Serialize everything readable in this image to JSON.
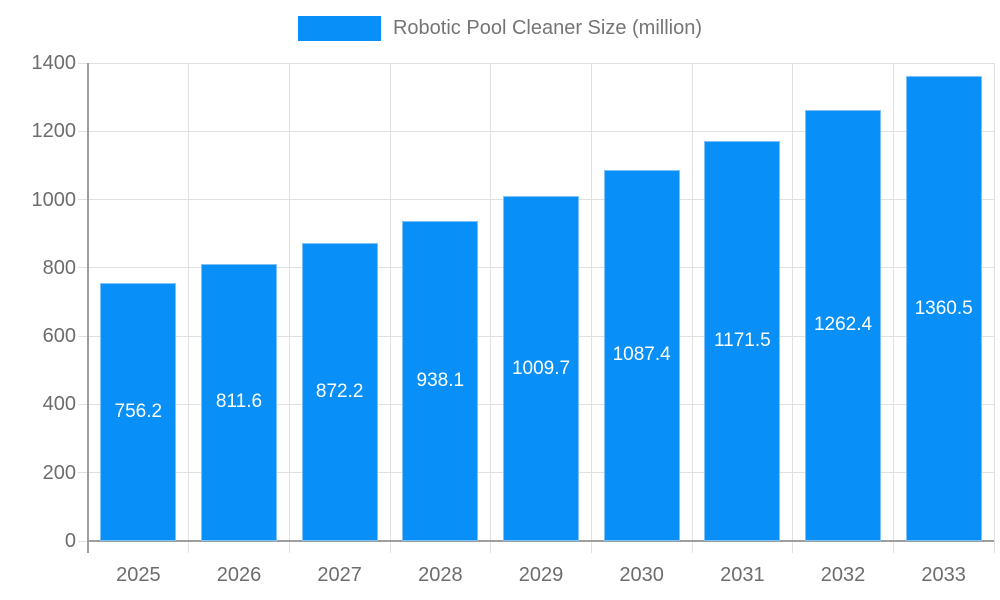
{
  "chart_data": {
    "type": "bar",
    "title": "Robotic Pool Cleaner Size (million)",
    "series": [
      {
        "name": "Robotic Pool Cleaner Size (million)",
        "values": [
          756.2,
          811.6,
          872.2,
          938.1,
          1009.7,
          1087.4,
          1171.5,
          1262.4,
          1360.5
        ]
      }
    ],
    "categories": [
      "2025",
      "2026",
      "2027",
      "2028",
      "2029",
      "2030",
      "2031",
      "2032",
      "2033"
    ],
    "values": [
      756.2,
      811.6,
      872.2,
      938.1,
      1009.7,
      1087.4,
      1171.5,
      1262.4,
      1360.5
    ],
    "value_labels": [
      "756.2",
      "811.6",
      "872.2",
      "938.1",
      "1009.7",
      "1087.4",
      "1171.5",
      "1262.4",
      "1360.5"
    ],
    "xlabel": "",
    "ylabel": "",
    "ylim": [
      0,
      1400
    ],
    "yticks": [
      0,
      200,
      400,
      600,
      800,
      1000,
      1200,
      1400
    ],
    "grid": true,
    "legend_position": "top",
    "bar_label_position": "inside-center"
  },
  "colors": {
    "bar": "#0990f8",
    "bar_border": "#7fc0f7",
    "bar_label": "#ffffff",
    "grid": "#e0e0e0",
    "axis": "#9e9e9e",
    "tick_label": "#6d6d6d",
    "legend_text": "#757575",
    "background": "#ffffff"
  }
}
